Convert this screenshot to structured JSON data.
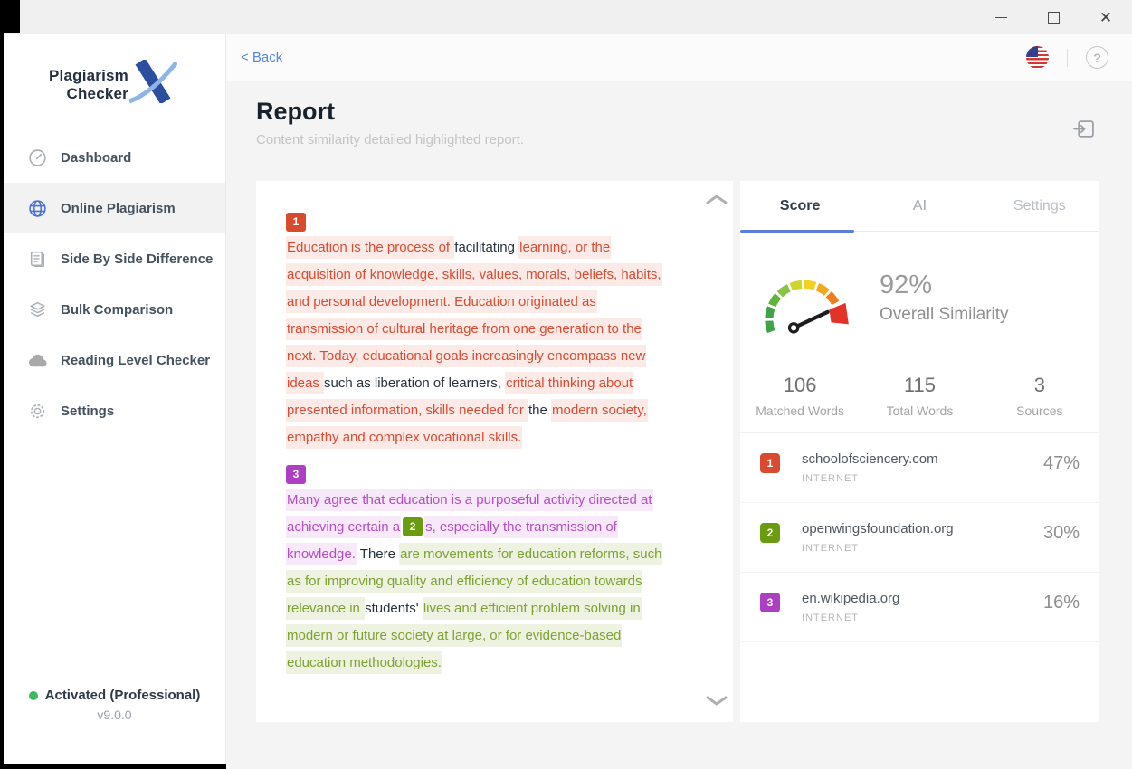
{
  "window": {
    "controls": {
      "minimize": "minimize",
      "maximize": "maximize",
      "close_glyph": "✕"
    }
  },
  "sidebar": {
    "logo": {
      "line1": "Plagiarism",
      "line2": "Checker",
      "mark": "X"
    },
    "items": [
      {
        "label": "Dashboard",
        "icon": "dashboard-gauge-icon",
        "active": false
      },
      {
        "label": "Online Plagiarism",
        "icon": "globe-icon",
        "active": true
      },
      {
        "label": "Side By Side Difference",
        "icon": "side-by-side-icon",
        "active": false
      },
      {
        "label": "Bulk Comparison",
        "icon": "layers-icon",
        "active": false
      },
      {
        "label": "Reading Level Checker",
        "icon": "cloud-icon",
        "active": false
      },
      {
        "label": "Settings",
        "icon": "gear-icon",
        "active": false
      }
    ],
    "activation": {
      "status": "Activated (Professional)",
      "version": "v9.0.0",
      "dot_color": "#3cba5d"
    }
  },
  "topbar": {
    "back_label": "< Back",
    "help_glyph": "?"
  },
  "header": {
    "title": "Report",
    "subtitle": "Content similarity detailed highlighted report."
  },
  "document": {
    "paragraphs": [
      {
        "badge": "1",
        "badge_class": "b1",
        "segments": [
          {
            "s": "m1",
            "t": "Education is the process of "
          },
          {
            "s": "p",
            "t": "facilitating "
          },
          {
            "s": "m1",
            "t": "learning, or the acquisition of knowledge, skills, values, morals, beliefs, habits, and personal development. Education originated as transmission of cultural heritage from one generation to the next. Today, educational goals increasingly encompass new ideas "
          },
          {
            "s": "p",
            "t": "such as liberation of learners, "
          },
          {
            "s": "m1",
            "t": "critical thinking about presented information, skills needed for "
          },
          {
            "s": "p",
            "t": "the "
          },
          {
            "s": "m1",
            "t": "modern society, empathy and complex vocational skills."
          }
        ]
      },
      {
        "badge": "3",
        "badge_class": "b3",
        "segments": [
          {
            "s": "m3",
            "t": "Many agree that education is a purposeful activity directed at achieving certain a"
          },
          {
            "badge": "2",
            "badge_class": "b2"
          },
          {
            "s": "m3",
            "t": "s, especially the transmission of knowledge."
          },
          {
            "s": "p",
            "t": " There "
          },
          {
            "s": "m2",
            "t": "are movements for education reforms, such as for improving quality and efficiency of education towards relevance in "
          },
          {
            "s": "p",
            "t": "students' "
          },
          {
            "s": "m2",
            "t": "lives and efficient problem solving in modern or future society at large, or for evidence-based education methodologies."
          }
        ]
      }
    ]
  },
  "panel": {
    "tabs": [
      {
        "label": "Score",
        "active": true
      },
      {
        "label": "AI",
        "active": false
      },
      {
        "label": "Settings",
        "active": false
      }
    ],
    "score": {
      "percent": "92%",
      "label": "Overall Similarity"
    },
    "stats": [
      {
        "value": "106",
        "label": "Matched Words"
      },
      {
        "value": "115",
        "label": "Total Words"
      },
      {
        "value": "3",
        "label": "Sources"
      }
    ],
    "sources": [
      {
        "num": "1",
        "domain": "schoolofsciencery.com",
        "type": "INTERNET",
        "percent": "47%",
        "color": "#d84b2e"
      },
      {
        "num": "2",
        "domain": "openwingsfoundation.org",
        "type": "INTERNET",
        "percent": "30%",
        "color": "#6a9c10"
      },
      {
        "num": "3",
        "domain": "en.wikipedia.org",
        "type": "INTERNET",
        "percent": "16%",
        "color": "#ad40c2"
      }
    ]
  },
  "colors": {
    "accent_blue": "#5b7edb",
    "back_link": "#5585d6",
    "source1": "#d84b2e",
    "source2": "#6a9c10",
    "source3": "#ad40c2",
    "activation_green": "#3cba5d"
  }
}
